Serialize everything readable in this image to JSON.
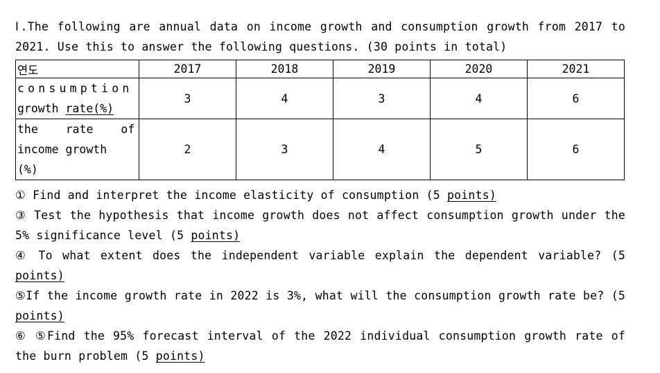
{
  "intro": {
    "text": "Ⅰ.The following are annual data on income growth and consumption growth from 2017 to 2021. Use this to answer the following questions. (30 points in total)"
  },
  "table": {
    "header": [
      "연도",
      "2017",
      "2018",
      "2019",
      "2020",
      "2021"
    ],
    "row1": {
      "line1": "consumption",
      "line2_pre": "growth ",
      "line2_underlined": "rate(%)",
      "values": [
        "3",
        "4",
        "3",
        "4",
        "6"
      ]
    },
    "row2": {
      "line1": "the rate of",
      "line2": "income growth",
      "line3": "(%)",
      "values": [
        "2",
        "3",
        "4",
        "5",
        "6"
      ]
    }
  },
  "questions": [
    {
      "pre": "① Find and interpret the income elasticity of consumption (5 ",
      "underlined": "points)"
    },
    {
      "pre": "③ Test the hypothesis that income growth does not affect consumption growth under the 5% significance level (5 ",
      "underlined": "points)"
    },
    {
      "pre": "④ To what extent does the independent variable explain the dependent variable? (5 ",
      "underlined": "points)"
    },
    {
      "pre": "⑤If the income growth rate in 2022 is 3%, what will the consumption growth rate be? (5 ",
      "underlined": "points)"
    },
    {
      "pre": "⑥ ⑤Find the 95% forecast interval of the 2022 individual consumption growth rate of the burn problem (5 ",
      "underlined": "points)"
    }
  ]
}
